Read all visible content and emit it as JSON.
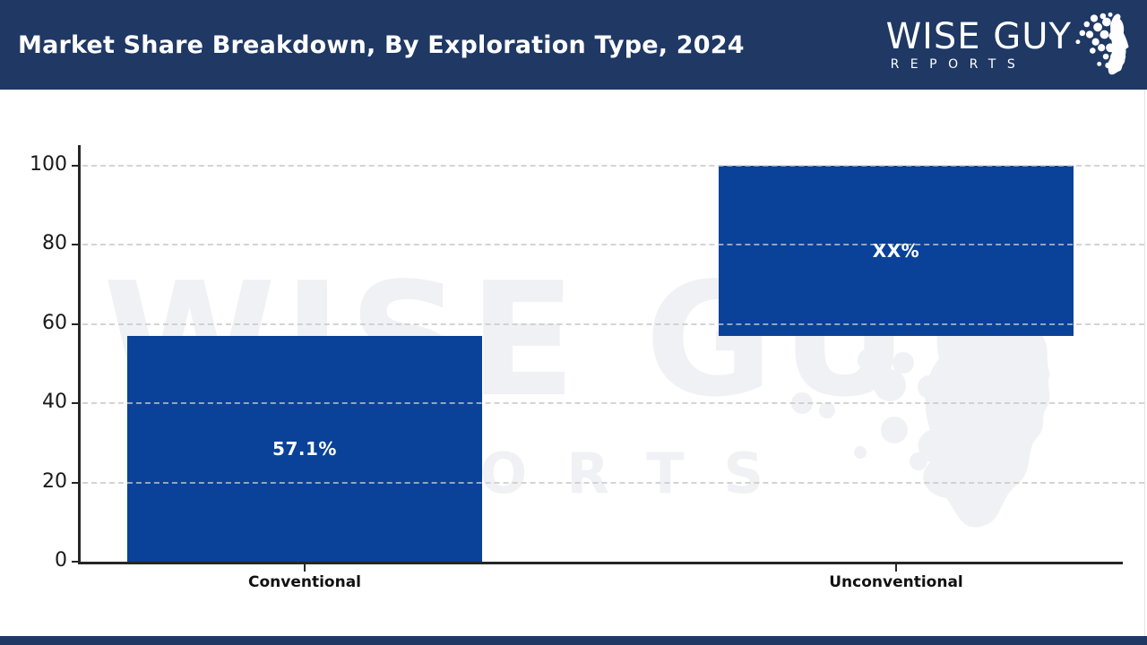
{
  "header": {
    "title": "Market Share Breakdown, By Exploration Type, 2024",
    "logo": {
      "wordmark": "WISE GUY",
      "subtext": "REPORTS"
    }
  },
  "watermark": {
    "line1": "WISE GUY",
    "line2": "REPORTS"
  },
  "chart_data": {
    "type": "bar",
    "title": "Market Share Breakdown, By Exploration Type, 2024",
    "categories": [
      "Conventional",
      "Unconventional"
    ],
    "bars": [
      {
        "category": "Conventional",
        "label": "57.1%",
        "from": 0,
        "to": 57.1
      },
      {
        "category": "Unconventional",
        "label": "XX%",
        "from": 57.1,
        "to": 100
      }
    ],
    "series": [
      {
        "name": "Market share (%)",
        "values": [
          57.1,
          null
        ]
      }
    ],
    "value_labels": [
      "57.1%",
      "XX%"
    ],
    "ylim": [
      0,
      105
    ],
    "yticks": [
      0,
      20,
      40,
      60,
      80,
      100
    ],
    "xlabel": "",
    "ylabel": "",
    "grid": "horizontal dashed, drawn over bars",
    "legend": "none",
    "bar_color": "#0a4199",
    "label_color": "#ffffff"
  },
  "colors": {
    "header_bg": "#1f3864",
    "footer_bg": "#1f3864",
    "bar": "#0a4199",
    "axis": "#262626",
    "gridline": "#c6c6c6",
    "watermark": "#f0f1f4",
    "title_text": "#ffffff"
  }
}
